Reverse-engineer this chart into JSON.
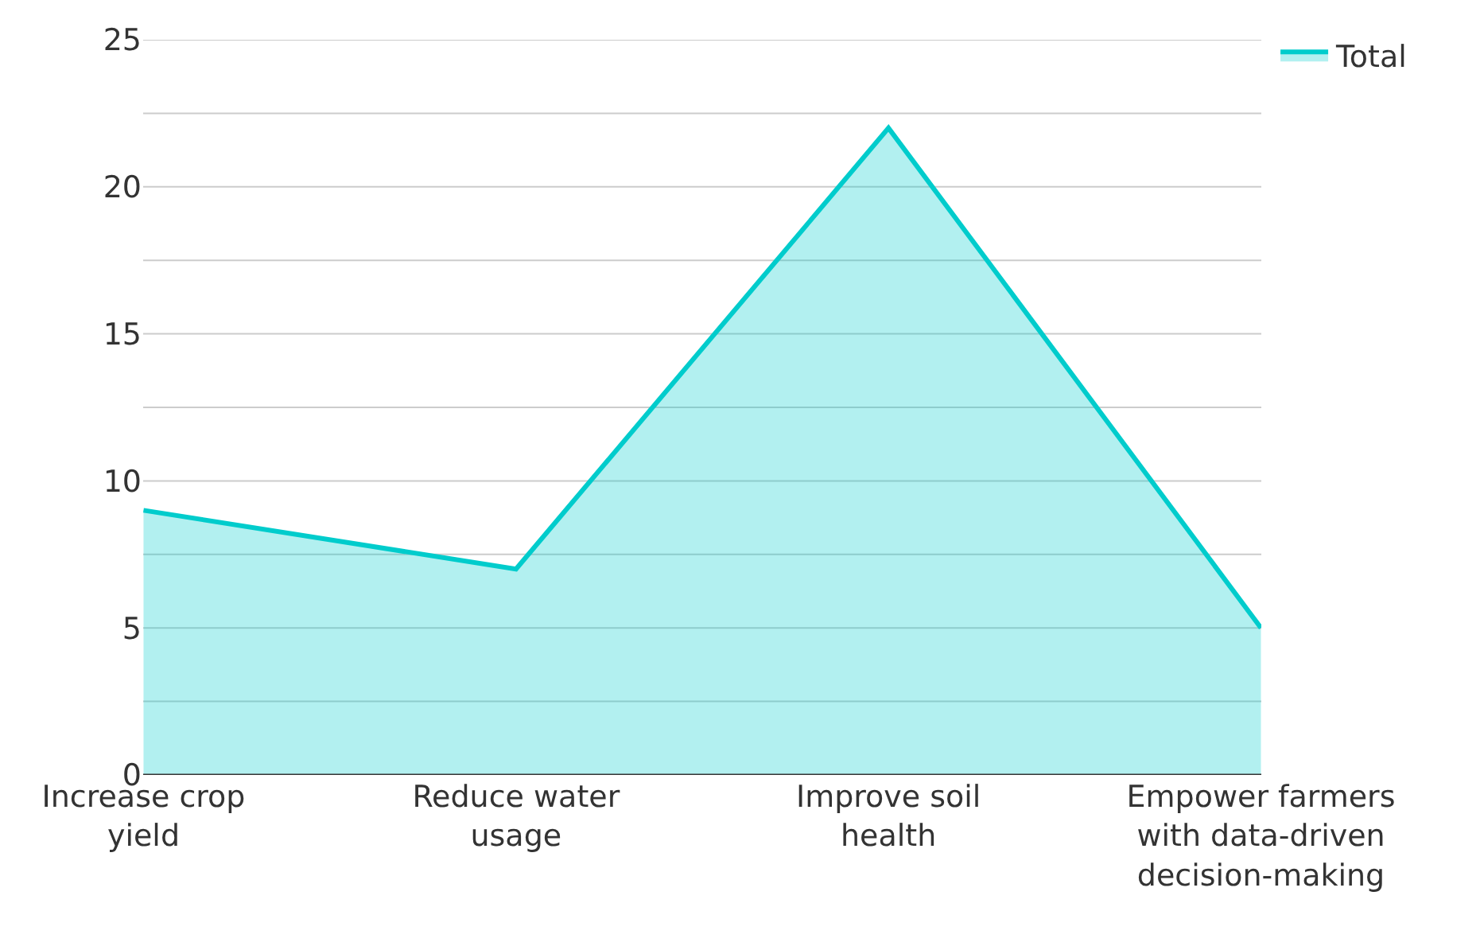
{
  "chart_data": {
    "type": "area",
    "categories": [
      "Increase crop yield",
      "Reduce water usage",
      "Improve soil health",
      "Empower farmers with data-driven decision-making"
    ],
    "series": [
      {
        "name": "Total",
        "color": "#00cccc",
        "values": [
          9,
          7,
          22,
          5
        ]
      }
    ],
    "ylim": [
      0,
      25
    ],
    "yticks": [
      0,
      {
        "value": 2.5,
        "label": null
      },
      5,
      {
        "value": 7.5,
        "label": null
      },
      10,
      {
        "value": 12.5,
        "label": null
      },
      15,
      {
        "value": 17.5,
        "label": null
      },
      20,
      {
        "value": 22.5,
        "label": null
      },
      25
    ],
    "grid": "y",
    "legend": "top right"
  }
}
